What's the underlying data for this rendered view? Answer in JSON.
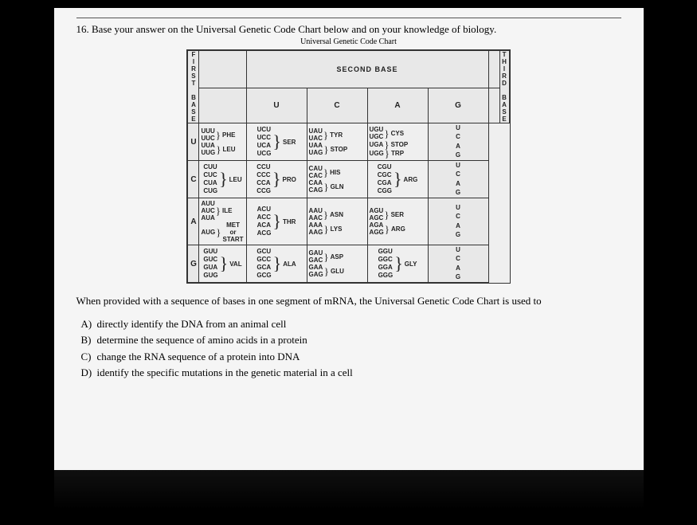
{
  "question": {
    "number": "16.",
    "text": "Base your answer on the Universal Genetic Code Chart below and on your knowledge of biology.",
    "caption": "Universal Genetic Code Chart",
    "header": "SECOND BASE",
    "firstBaseLabel": "FIRST BASE",
    "thirdBaseLabel": "THIRD BASE",
    "bases": [
      "U",
      "C",
      "A",
      "G"
    ],
    "rows": [
      {
        "first": "U",
        "cells": [
          {
            "groups": [
              {
                "codons": [
                  "UUU",
                  "UUC"
                ],
                "aa": "PHE"
              },
              {
                "codons": [
                  "UUA",
                  "UUG"
                ],
                "aa": "LEU"
              }
            ]
          },
          {
            "groups": [
              {
                "codons": [
                  "UCU",
                  "UCC",
                  "UCA",
                  "UCG"
                ],
                "aa": "SER"
              }
            ]
          },
          {
            "groups": [
              {
                "codons": [
                  "UAU",
                  "UAC"
                ],
                "aa": "TYR"
              },
              {
                "codons": [
                  "UAA",
                  "UAG"
                ],
                "aa": "STOP"
              }
            ]
          },
          {
            "groups": [
              {
                "codons": [
                  "UGU",
                  "UGC"
                ],
                "aa": "CYS"
              },
              {
                "codons": [
                  "UGA"
                ],
                "aa": "STOP"
              },
              {
                "codons": [
                  "UGG"
                ],
                "aa": "TRP"
              }
            ]
          }
        ]
      },
      {
        "first": "C",
        "cells": [
          {
            "groups": [
              {
                "codons": [
                  "CUU",
                  "CUC",
                  "CUA",
                  "CUG"
                ],
                "aa": "LEU"
              }
            ]
          },
          {
            "groups": [
              {
                "codons": [
                  "CCU",
                  "CCC",
                  "CCA",
                  "CCG"
                ],
                "aa": "PRO"
              }
            ]
          },
          {
            "groups": [
              {
                "codons": [
                  "CAU",
                  "CAC"
                ],
                "aa": "HIS"
              },
              {
                "codons": [
                  "CAA",
                  "CAG"
                ],
                "aa": "GLN"
              }
            ]
          },
          {
            "groups": [
              {
                "codons": [
                  "CGU",
                  "CGC",
                  "CGA",
                  "CGG"
                ],
                "aa": "ARG"
              }
            ]
          }
        ]
      },
      {
        "first": "A",
        "cells": [
          {
            "groups": [
              {
                "codons": [
                  "AUU",
                  "AUC",
                  "AUA"
                ],
                "aa": "ILE"
              },
              {
                "codons": [
                  "AUG"
                ],
                "aa": "MET or START"
              }
            ]
          },
          {
            "groups": [
              {
                "codons": [
                  "ACU",
                  "ACC",
                  "ACA",
                  "ACG"
                ],
                "aa": "THR"
              }
            ]
          },
          {
            "groups": [
              {
                "codons": [
                  "AAU",
                  "AAC"
                ],
                "aa": "ASN"
              },
              {
                "codons": [
                  "AAA",
                  "AAG"
                ],
                "aa": "LYS"
              }
            ]
          },
          {
            "groups": [
              {
                "codons": [
                  "AGU",
                  "AGC"
                ],
                "aa": "SER"
              },
              {
                "codons": [
                  "AGA",
                  "AGG"
                ],
                "aa": "ARG"
              }
            ]
          }
        ]
      },
      {
        "first": "G",
        "cells": [
          {
            "groups": [
              {
                "codons": [
                  "GUU",
                  "GUC",
                  "GUA",
                  "GUG"
                ],
                "aa": "VAL"
              }
            ]
          },
          {
            "groups": [
              {
                "codons": [
                  "GCU",
                  "GCC",
                  "GCA",
                  "GCG"
                ],
                "aa": "ALA"
              }
            ]
          },
          {
            "groups": [
              {
                "codons": [
                  "GAU",
                  "GAC"
                ],
                "aa": "ASP"
              },
              {
                "codons": [
                  "GAA",
                  "GAG"
                ],
                "aa": "GLU"
              }
            ]
          },
          {
            "groups": [
              {
                "codons": [
                  "GGU",
                  "GGC",
                  "GGA",
                  "GGG"
                ],
                "aa": "GLY"
              }
            ]
          }
        ]
      }
    ],
    "prompt": "When provided with a sequence of bases in one segment of mRNA, the Universal Genetic Code Chart is used to",
    "choices": [
      {
        "label": "A)",
        "text": "directly identify the DNA from an animal cell"
      },
      {
        "label": "B)",
        "text": "determine the sequence of amino acids in a protein"
      },
      {
        "label": "C)",
        "text": "change the RNA sequence of a protein into DNA"
      },
      {
        "label": "D)",
        "text": "identify the specific mutations in the genetic material in a cell"
      }
    ]
  }
}
